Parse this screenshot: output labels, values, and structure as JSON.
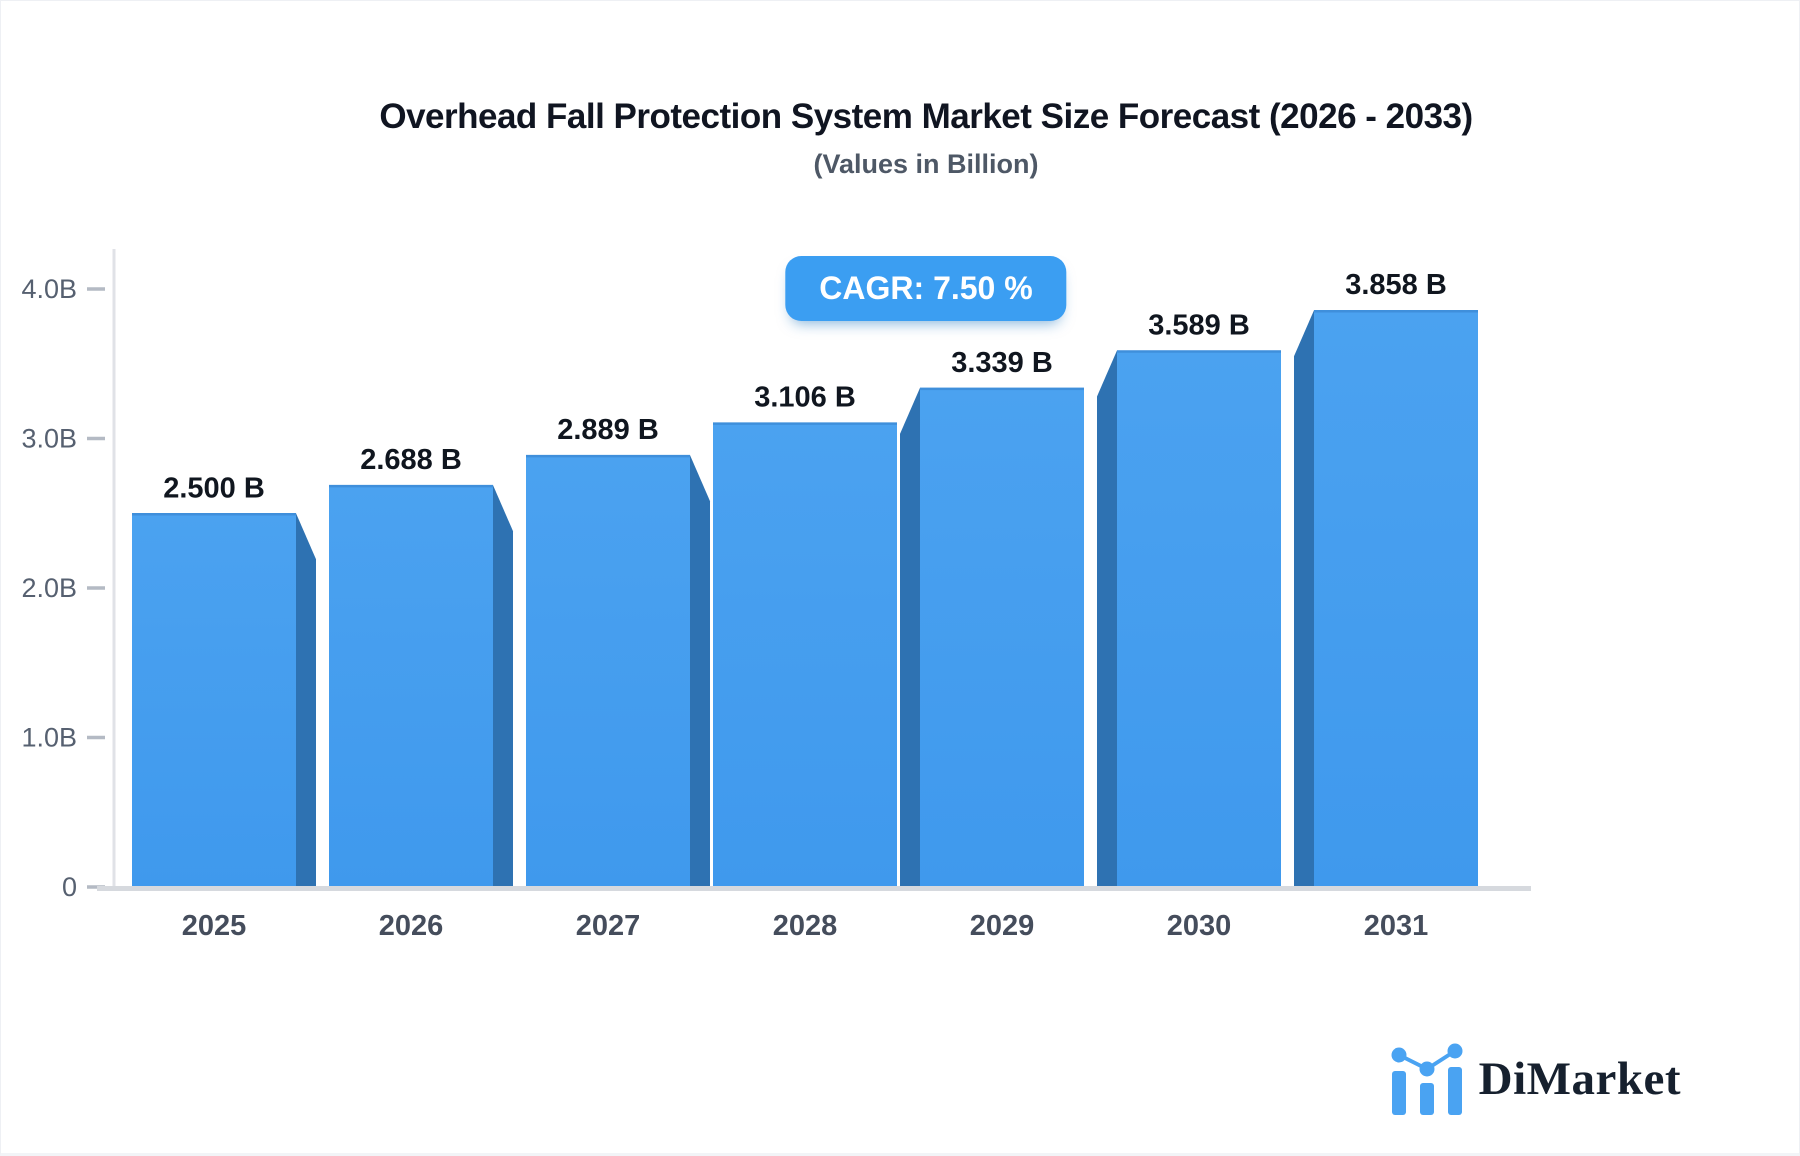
{
  "header": {
    "title": "Overhead Fall Protection System Market Size Forecast (2026 - 2033)",
    "subtitle": "(Values in Billion)"
  },
  "badge": {
    "label": "CAGR: 7.50 %"
  },
  "chart_data": {
    "type": "bar",
    "title": "Overhead Fall Protection System Market Size Forecast (2026 - 2033)",
    "subtitle": "(Values in Billion)",
    "xlabel": "",
    "ylabel": "",
    "categories": [
      "2025",
      "2026",
      "2027",
      "2028",
      "2029",
      "2030",
      "2031"
    ],
    "values": [
      2.5,
      2.688,
      2.889,
      3.106,
      3.339,
      3.589,
      3.858
    ],
    "value_labels": [
      "2.500 B",
      "2.688 B",
      "2.889 B",
      "3.106 B",
      "3.339 B",
      "3.589 B",
      "3.858 B"
    ],
    "ylim": [
      0,
      4
    ],
    "y_ticks": [
      {
        "label": "4.0B",
        "value": 4.0
      },
      {
        "label": "3.0B",
        "value": 3.0
      },
      {
        "label": "2.0B",
        "value": 2.0
      },
      {
        "label": "1.0B",
        "value": 1.0
      },
      {
        "label": "0",
        "value": 0.0
      }
    ],
    "grid": false,
    "legend": false,
    "cagr": "7.50 %",
    "style": {
      "bar_face_top": "#4ba2f0",
      "bar_face_bottom": "#3f99ed",
      "bar_top_edge": "#3f8fdb",
      "bar_side": "#2e72b2",
      "axis_line": "#e0e2e7",
      "baseline": "#d6d9de",
      "tick_mark": "#b4bac4",
      "tick_label_color": "#566070",
      "value_label_color": "#10161f",
      "category_label_color": "#454d5c"
    }
  },
  "logo": {
    "text": "DiMarket",
    "icon": "bar-chart-logo-icon",
    "icon_color": "#4aa3f2",
    "text_color": "#16202e"
  }
}
